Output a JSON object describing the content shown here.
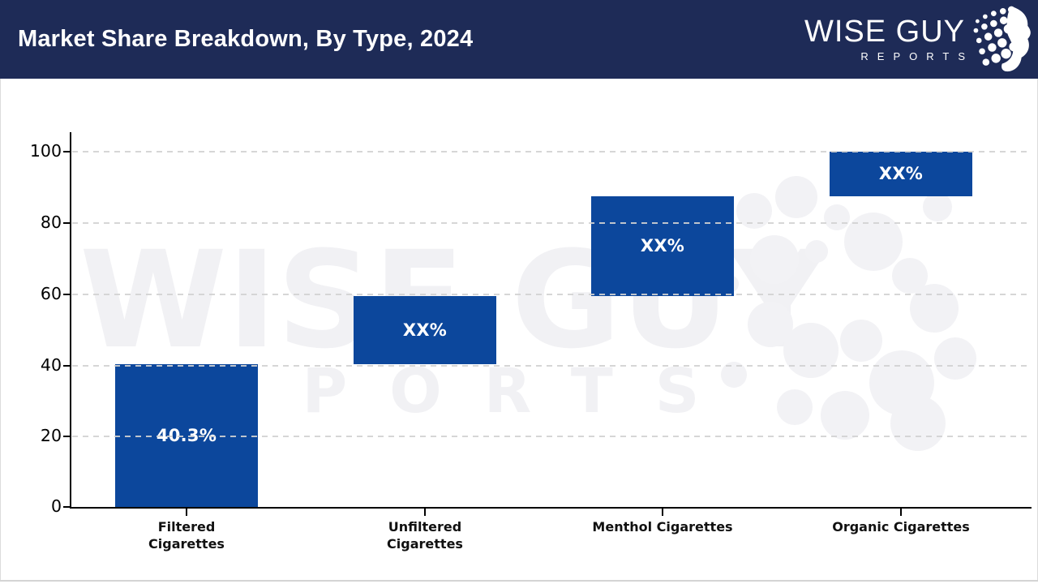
{
  "header": {
    "title": "Market Share Breakdown, By Type, 2024",
    "logo": {
      "line1": "WISE GUY",
      "line2": "REPORTS"
    }
  },
  "watermark": {
    "line1": "WISE GUY",
    "line2": "REPORTS"
  },
  "chart_data": {
    "type": "bar",
    "subtype": "waterfall",
    "title": "Market Share Breakdown, By Type, 2024",
    "categories": [
      "Filtered Cigarettes",
      "Unfiltered Cigarettes",
      "Menthol Cigarettes",
      "Organic Cigarettes"
    ],
    "cat_lines": [
      [
        "Filtered",
        "Cigarettes"
      ],
      [
        "Unfiltered",
        "Cigarettes"
      ],
      [
        "Menthol Cigarettes"
      ],
      [
        "Organic Cigarettes"
      ]
    ],
    "bars": [
      {
        "category": "Filtered Cigarettes",
        "start": 0,
        "end": 40.3,
        "label": "40.3%"
      },
      {
        "category": "Unfiltered Cigarettes",
        "start": 40.3,
        "end": 59.5,
        "label": "XX%"
      },
      {
        "category": "Menthol Cigarettes",
        "start": 59.5,
        "end": 87.5,
        "label": "XX%"
      },
      {
        "category": "Organic Cigarettes",
        "start": 87.5,
        "end": 100,
        "label": "XX%"
      }
    ],
    "yticks": [
      0,
      20,
      40,
      60,
      80,
      100
    ],
    "ylim": [
      0,
      100
    ],
    "xlabel": "",
    "ylabel": "",
    "grid": "horizontal dashed",
    "legend": "none"
  },
  "colors": {
    "header_bg": "#1e2b57",
    "bar": "#0c479c",
    "bar_label": "#ffffff",
    "grid": "#d2d2d2",
    "axis": "#000000",
    "watermark": "#f1f1f4"
  }
}
